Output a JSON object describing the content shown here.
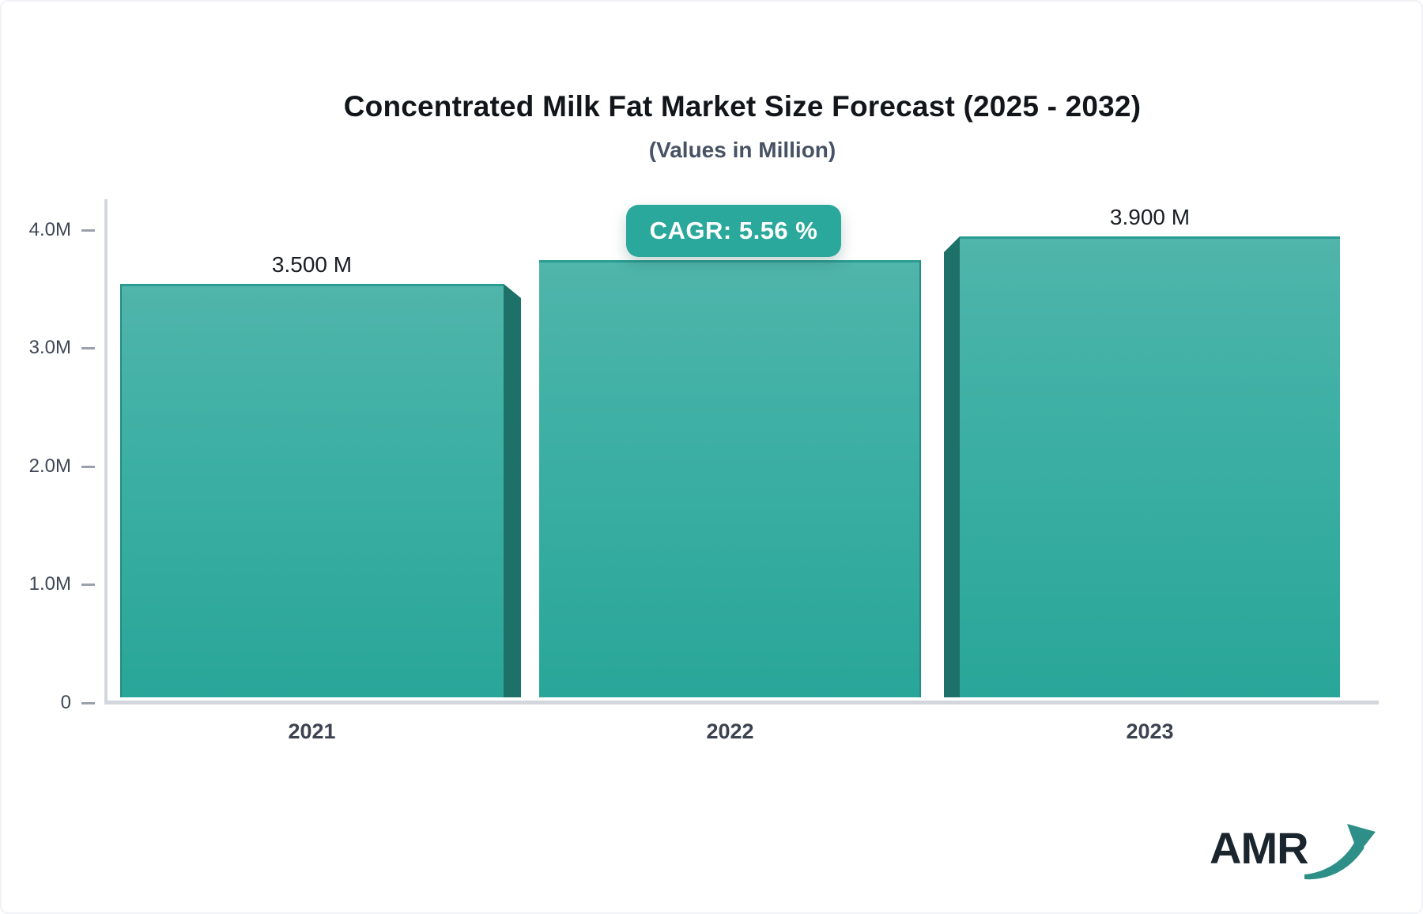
{
  "title": "Concentrated Milk Fat Market Size Forecast (2025 - 2032)",
  "subtitle": "(Values in Million)",
  "cagr_badge": "CAGR: 5.56 %",
  "logo": {
    "text": "AMR"
  },
  "chart_data": {
    "type": "bar",
    "categories": [
      "2021",
      "2022",
      "2023"
    ],
    "values": [
      3500,
      3700,
      3900
    ],
    "data_labels": [
      "3.500 M",
      "",
      "3.900 M"
    ],
    "title": "Concentrated Milk Fat Market Size Forecast (2025 - 2032)",
    "subtitle": "(Values in Million)",
    "xlabel": "",
    "ylabel": "",
    "ylim": [
      0,
      4000
    ],
    "y_ticks": [
      "4.0M",
      "3.0M",
      "2.0M",
      "1.0M",
      "0"
    ],
    "grid": false,
    "legend": "none",
    "annotation": "CAGR: 5.56 %",
    "note": "2022 value estimated from gridlines; its data label is hidden behind the CAGR badge"
  },
  "colors": {
    "bar_gradient_top": "#50b5ab",
    "bar_gradient_bottom": "#29a699",
    "bar_side_shadow": "#1d7168",
    "bar_top_border": "#2b9c91",
    "badge_background": "#2aa89b",
    "badge_text": "#ffffff",
    "axis_line": "#d3d6dc",
    "tick_mark": "#9aa1ac",
    "axis_text": "#3f4756",
    "title_text": "#12151a",
    "subtitle_text": "#475264",
    "logo_text": "#1b252d",
    "logo_arrow": "#2e8f89"
  }
}
